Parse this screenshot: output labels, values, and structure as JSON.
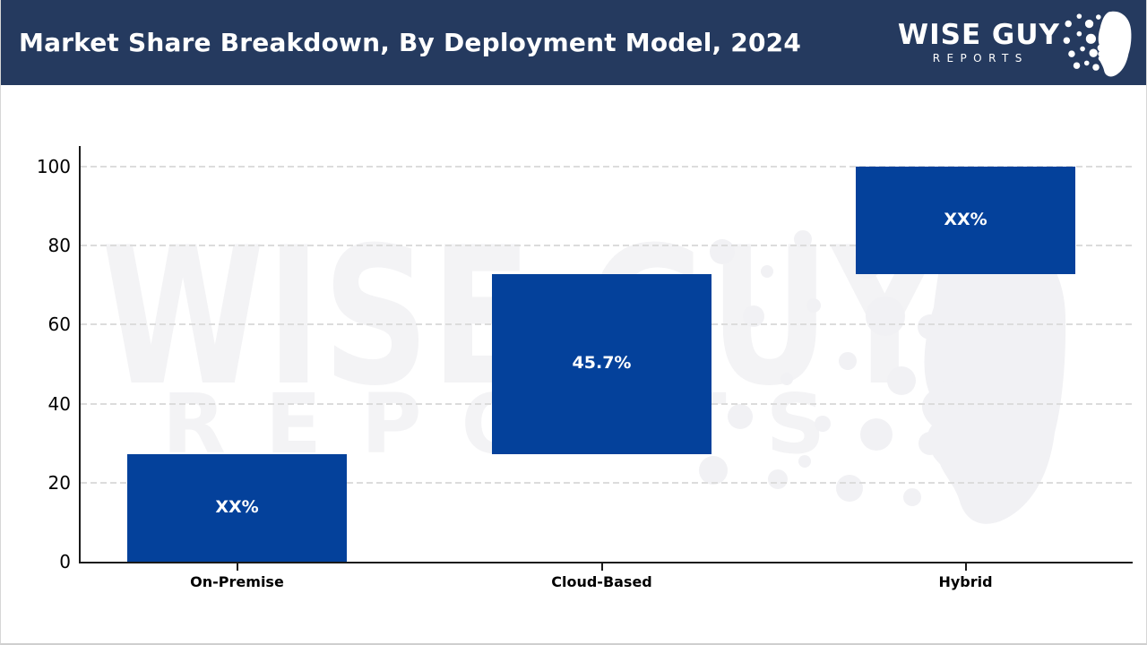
{
  "header": {
    "title": "Market Share Breakdown, By Deployment Model, 2024",
    "logo": {
      "line1": "WISE GUY",
      "line2": "REPORTS"
    }
  },
  "watermark": {
    "line1": "WISE GUY",
    "line2": "REPORTS"
  },
  "colors": {
    "header_bg": "#253a5f",
    "bar": "#04419b",
    "grid": "#dcdcdc",
    "axis": "#1a1a1a",
    "bar_label_text": "#ffffff",
    "watermark": "#f3f3f5"
  },
  "chart_data": {
    "type": "bar",
    "subtype": "floating-stacked-percent",
    "title": "Market Share Breakdown, By Deployment Model, 2024",
    "categories": [
      "On-Premise",
      "Cloud-Based",
      "Hybrid"
    ],
    "segments": [
      {
        "category": "On-Premise",
        "start": 0,
        "end": 27.15,
        "label": "XX%"
      },
      {
        "category": "Cloud-Based",
        "start": 27.15,
        "end": 72.85,
        "label": "45.7%"
      },
      {
        "category": "Hybrid",
        "start": 72.85,
        "end": 100,
        "label": "XX%"
      }
    ],
    "xlabel": "",
    "ylabel": "",
    "ylim": [
      0,
      100
    ],
    "yticks": [
      0,
      20,
      40,
      60,
      80,
      100
    ],
    "grid": "dashed-horizontal",
    "legend": null
  }
}
